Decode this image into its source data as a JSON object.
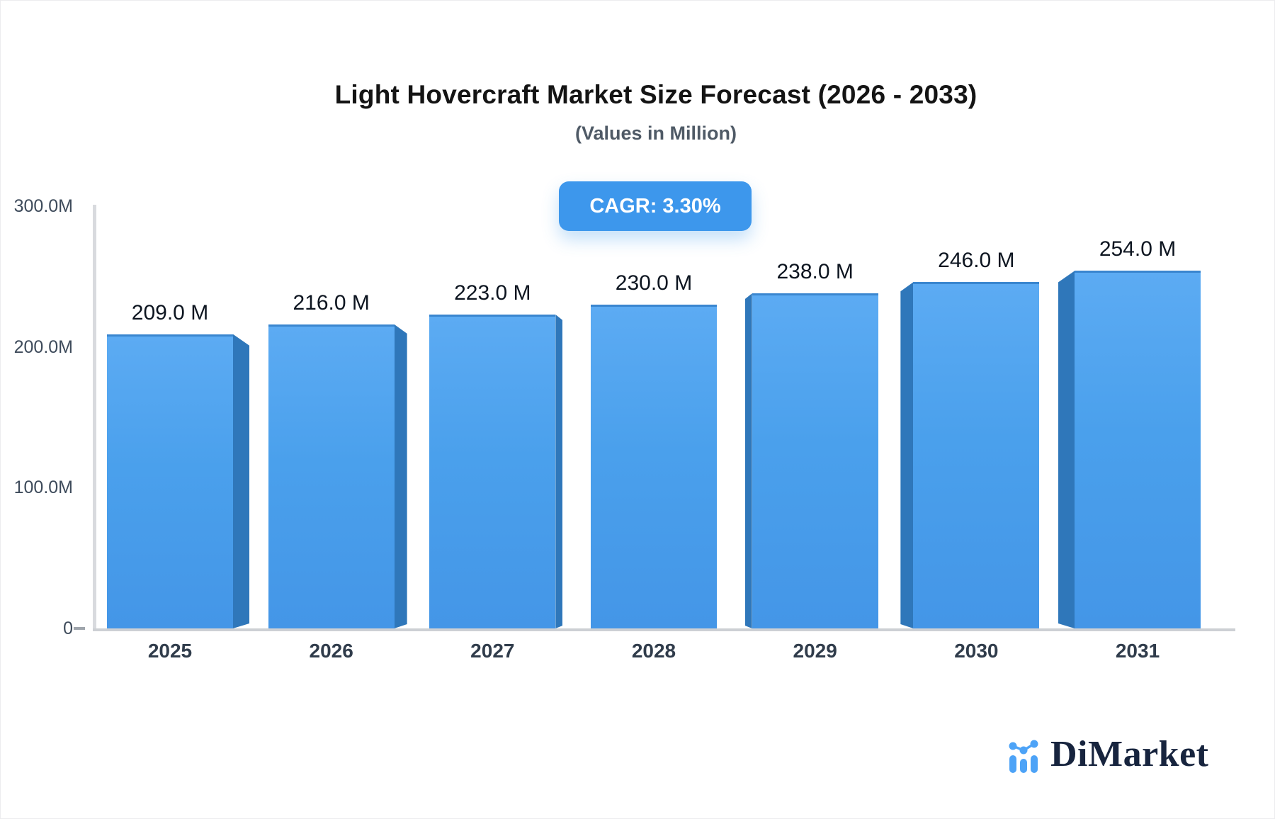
{
  "header": {
    "title": "Light Hovercraft Market Size Forecast (2026 - 2033)",
    "subtitle": "(Values in Million)"
  },
  "cagr_badge": {
    "label": "CAGR: 3.30%",
    "background_color": "#3d97ec",
    "text_color": "#ffffff"
  },
  "chart_data": {
    "type": "bar",
    "title": "Light Hovercraft Market Size Forecast (2026 - 2033)",
    "subtitle": "(Values in Million)",
    "unit": "Million",
    "categories": [
      "2025",
      "2026",
      "2027",
      "2028",
      "2029",
      "2030",
      "2031"
    ],
    "values": [
      209,
      216,
      223,
      230,
      238,
      246,
      254
    ],
    "value_labels": [
      "209.0 M",
      "216.0 M",
      "223.0 M",
      "230.0 M",
      "238.0 M",
      "246.0 M",
      "254.0 M"
    ],
    "xlabel": "",
    "ylabel": "",
    "ylim": [
      0,
      300
    ],
    "y_ticks": [
      {
        "value": 300,
        "label": "300.0M"
      },
      {
        "value": 200,
        "label": "200.0M"
      },
      {
        "value": 100,
        "label": "100.0M"
      },
      {
        "value": 0,
        "label": "0"
      }
    ],
    "grid": false,
    "legend": "none",
    "cagr": "3.30%",
    "bar_face_color": "#4da0ed",
    "bar_side_color": "#2f77ba",
    "bar_style": "3d-perspective"
  },
  "brand": {
    "name": "DiMarket",
    "icon": "bar-chart-logo-icon",
    "accent_color": "#4da3f7",
    "text_color": "#17243e"
  }
}
